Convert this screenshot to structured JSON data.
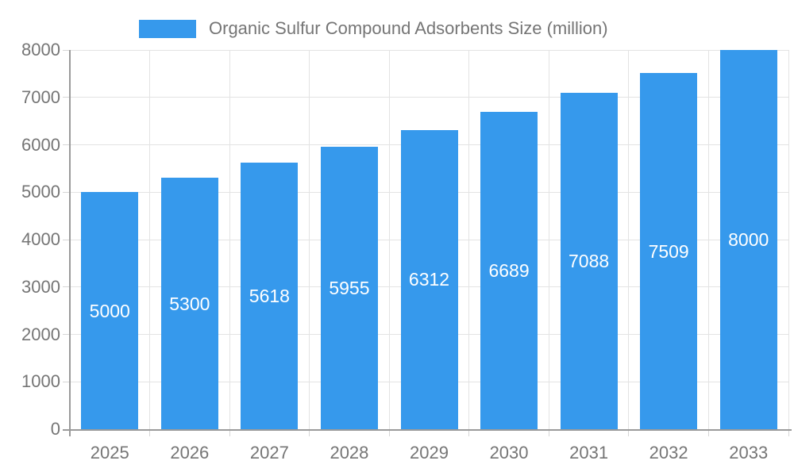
{
  "chart_data": {
    "type": "bar",
    "title": "Organic Sulfur Compound Adsorbents Size (million)",
    "legend_position": "top",
    "categories": [
      "2025",
      "2026",
      "2027",
      "2028",
      "2029",
      "2030",
      "2031",
      "2032",
      "2033"
    ],
    "values": [
      5000,
      5300,
      5618,
      5955,
      6312,
      6689,
      7088,
      7509,
      8000
    ],
    "xlabel": "",
    "ylabel": "",
    "ylim": [
      0,
      8000
    ],
    "ytick_step": 1000,
    "ytick_labels": [
      "0",
      "1000",
      "2000",
      "3000",
      "4000",
      "5000",
      "6000",
      "7000",
      "8000"
    ],
    "grid": true,
    "bar_color": "#3699ec",
    "value_label_color": "#ffffff",
    "axis_color": "#9a9a9a",
    "gridline_color": "#e3e3e3",
    "tick_label_color": "#757575"
  }
}
